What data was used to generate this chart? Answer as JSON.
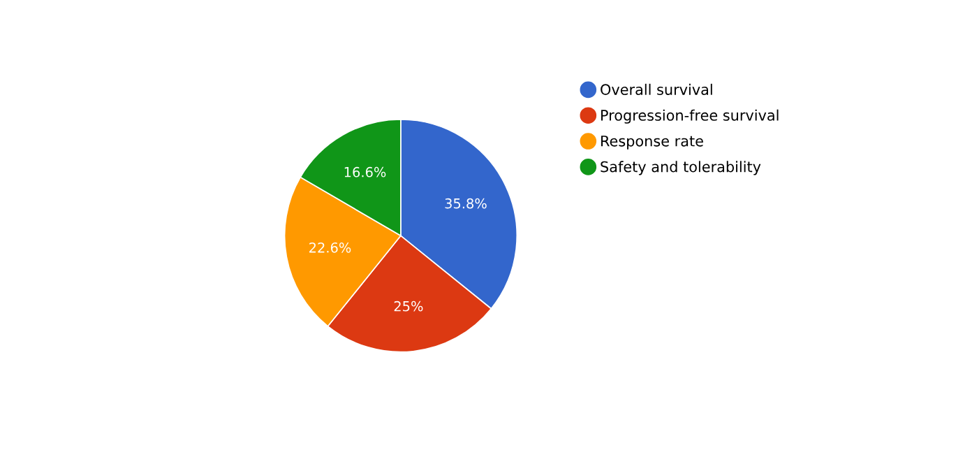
{
  "chart_data": {
    "type": "pie",
    "categories": [
      "Overall survival",
      "Progression-free survival",
      "Response rate",
      "Safety and tolerability"
    ],
    "values": [
      35.8,
      25,
      22.6,
      16.6
    ],
    "value_labels": [
      "35.8%",
      "25%",
      "22.6%",
      "16.6%"
    ],
    "colors": [
      "#3366cc",
      "#dc3912",
      "#ff9900",
      "#109618"
    ],
    "legend": "right"
  }
}
